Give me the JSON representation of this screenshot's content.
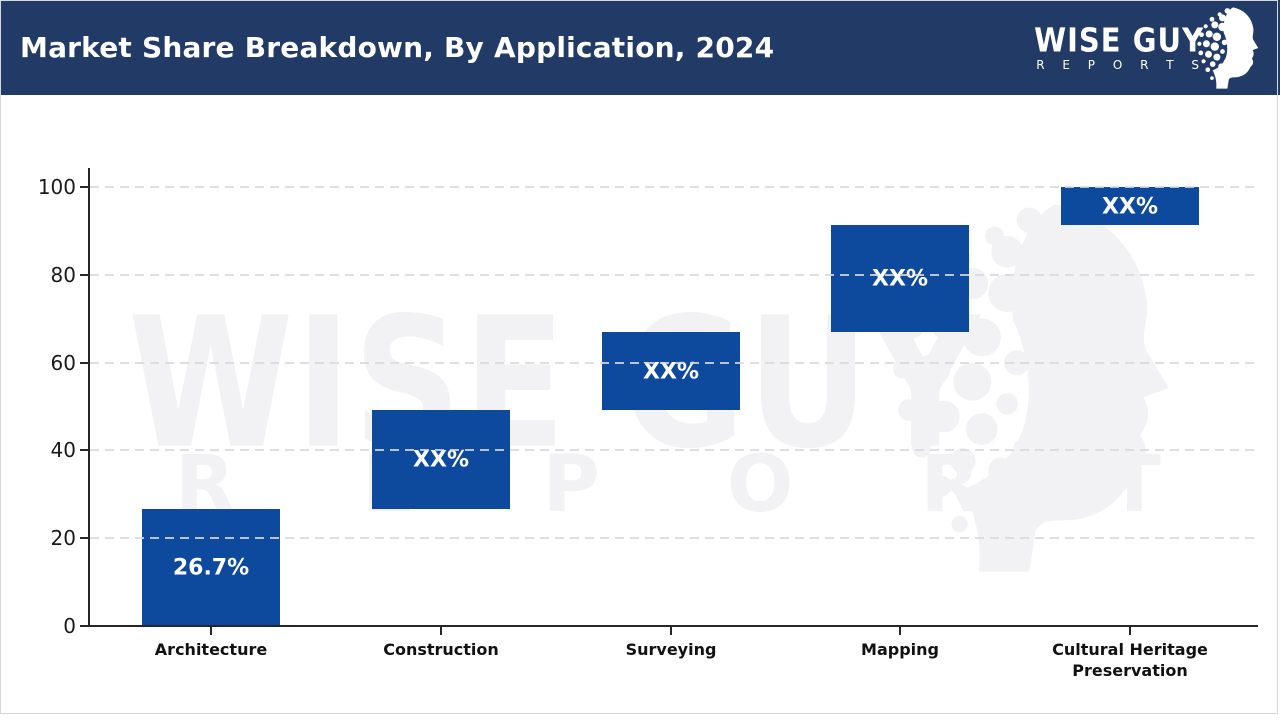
{
  "header": {
    "title": "Market Share Breakdown, By Application, 2024",
    "background_color": "#213a66",
    "logo": {
      "line1": "WISE GUY",
      "line2": "R E P O R T S"
    }
  },
  "watermark": {
    "line1": "WISE GUY",
    "line2": "R E P O R T S"
  },
  "chart_data": {
    "type": "bar",
    "subtype": "waterfall",
    "title": "Market Share Breakdown, By Application, 2024",
    "categories": [
      "Architecture",
      "Construction",
      "Surveying",
      "Mapping",
      "Cultural Heritage Preservation"
    ],
    "series": [
      {
        "name": "Market Share",
        "segments": [
          {
            "category": "Architecture",
            "start": 0,
            "end": 26.7,
            "label": "26.7%"
          },
          {
            "category": "Construction",
            "start": 26.7,
            "end": 49.2,
            "label": "XX%"
          },
          {
            "category": "Surveying",
            "start": 49.2,
            "end": 67.0,
            "label": "XX%"
          },
          {
            "category": "Mapping",
            "start": 67.0,
            "end": 91.4,
            "label": "XX%"
          },
          {
            "category": "Cultural Heritage Preservation",
            "start": 91.4,
            "end": 100,
            "label": "XX%"
          }
        ]
      }
    ],
    "xlabel": "",
    "ylabel": "",
    "ylim": [
      0,
      100
    ],
    "yticks": [
      0,
      20,
      40,
      60,
      80,
      100
    ],
    "grid": "horizontal-dashed",
    "legend": "none",
    "bar_color": "#0d4a9e",
    "bar_label_color": "#ffffff",
    "axis_color": "#262626",
    "gridline_color": "#d9d9d9"
  }
}
